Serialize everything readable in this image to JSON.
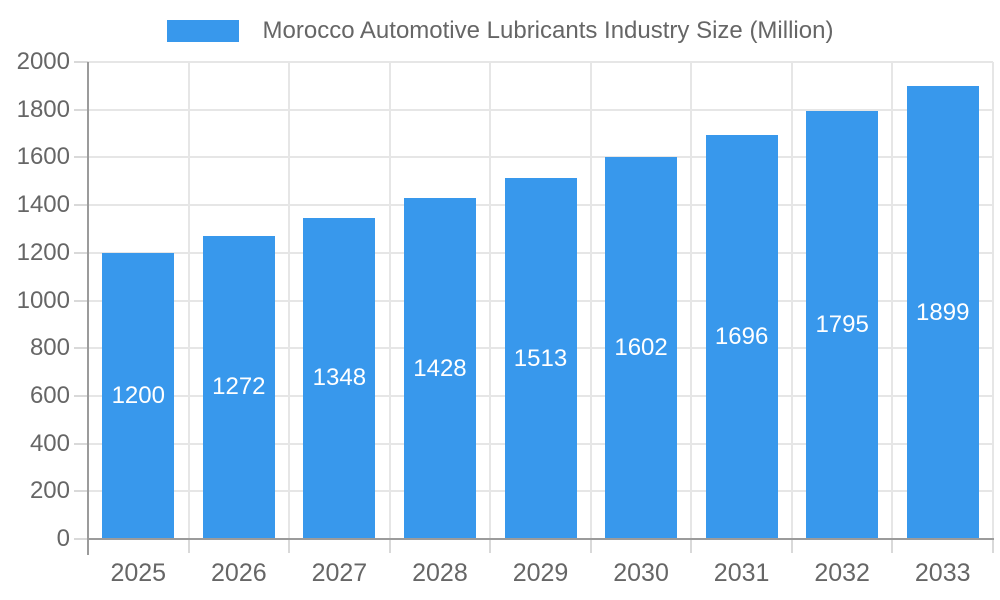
{
  "chart_data": {
    "type": "bar",
    "legend": "Morocco Automotive Lubricants Industry Size (Million)",
    "categories": [
      "2025",
      "2026",
      "2027",
      "2028",
      "2029",
      "2030",
      "2031",
      "2032",
      "2033"
    ],
    "values": [
      1200,
      1272,
      1348,
      1428,
      1513,
      1602,
      1696,
      1795,
      1899
    ],
    "title": "",
    "xlabel": "",
    "ylabel": "",
    "ylim": [
      0,
      2000
    ],
    "ytick_step": 200,
    "grid": true,
    "legend_position": "top-center",
    "value_label_position": "inside-center",
    "colors": {
      "bar": "#3898EC",
      "value_label": "#FFFFFF",
      "axis_label": "#666666",
      "legend_text": "#666666",
      "grid_line": "#E6E6E6",
      "axis_line": "#9B9B9B",
      "tick": "#D9D9D9",
      "background": "#FFFFFF"
    }
  }
}
